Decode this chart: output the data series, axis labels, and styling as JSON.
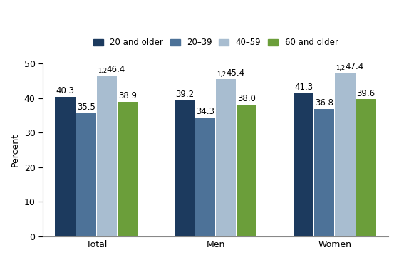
{
  "categories": [
    "Total",
    "Men",
    "Women"
  ],
  "series": {
    "20 and older": [
      40.3,
      39.2,
      41.3
    ],
    "20–39": [
      35.5,
      34.3,
      36.8
    ],
    "40–59": [
      46.4,
      45.4,
      47.4
    ],
    "60 and older": [
      38.9,
      38.0,
      39.6
    ]
  },
  "colors": {
    "20 and older": "#1c3a5e",
    "20–39": "#4d7298",
    "40–59": "#a8bdd0",
    "60 and older": "#6b9e3a"
  },
  "superscript_bars": [
    "40–59"
  ],
  "superscript_text": "1,2",
  "ylabel": "Percent",
  "ylim": [
    0,
    50
  ],
  "yticks": [
    0,
    10,
    20,
    30,
    40,
    50
  ],
  "bar_width": 0.17,
  "legend_labels": [
    "20 and older",
    "20–39",
    "40–59",
    "60 and older"
  ],
  "label_fontsize": 9,
  "tick_fontsize": 9,
  "value_fontsize": 8.5,
  "super_fontsize": 6.0,
  "legend_fontsize": 8.5
}
